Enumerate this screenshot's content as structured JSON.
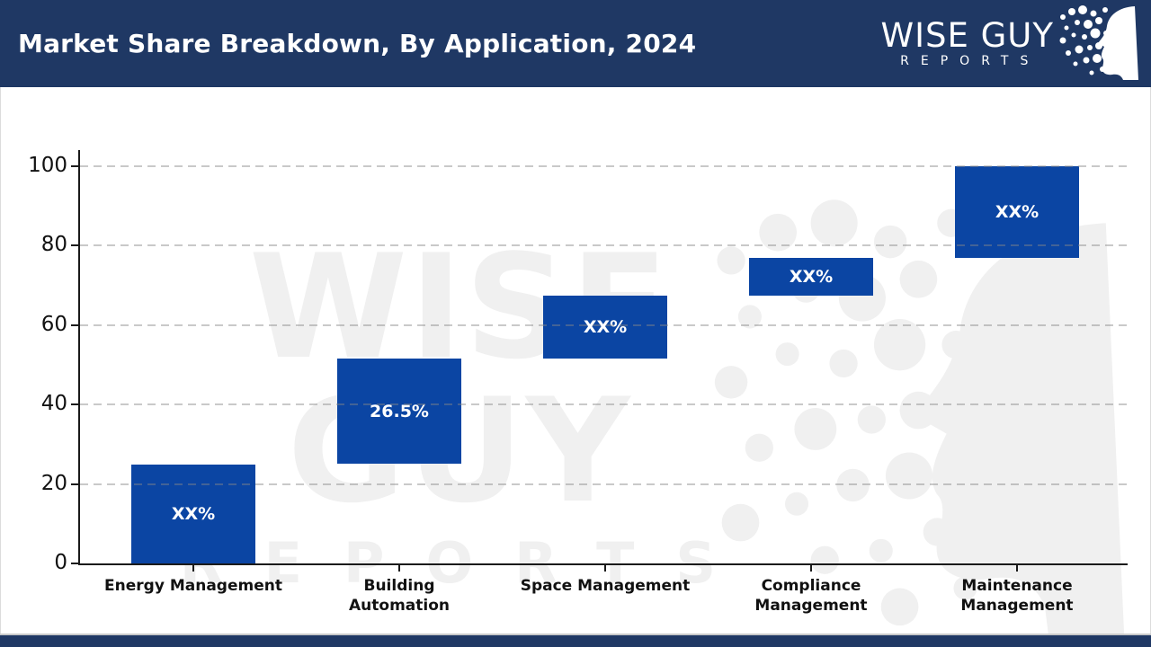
{
  "header": {
    "title": "Market Share Breakdown, By Application, 2024",
    "logo": {
      "line1": "WISE GUY",
      "line2": "REPORTS",
      "icon": "dot-face-icon"
    }
  },
  "watermark": {
    "line1": "WISE GUY",
    "line2": "REPORTS",
    "icon": "dot-face-watermark"
  },
  "colors": {
    "header_bg": "#1f3864",
    "footer_bg": "#1f3864",
    "title_text": "#ffffff",
    "bar": "#0b45a3",
    "bar_label": "#ffffff",
    "axis": "#1a1a1a",
    "gridline": "#c8c8c8",
    "watermark": "#f0f0f0"
  },
  "chart_data": {
    "type": "bar",
    "subtype": "waterfall",
    "title": "Market Share Breakdown, By Application, 2024",
    "xlabel": "",
    "ylabel": "",
    "ylim": [
      0,
      100
    ],
    "yticks": [
      0,
      20,
      40,
      60,
      80,
      100
    ],
    "grid": true,
    "grid_style": "dashed",
    "legend": "none",
    "categories": [
      "Energy Management",
      "Building Automation",
      "Space Management",
      "Compliance Management",
      "Maintenance Management"
    ],
    "categories_display": [
      "Energy Management",
      "Building\nAutomation",
      "Space Management",
      "Compliance\nManagement",
      "Maintenance\nManagement"
    ],
    "segments": [
      {
        "category": "Energy Management",
        "start": 0,
        "end": 25,
        "value": 25,
        "label": "XX%"
      },
      {
        "category": "Building Automation",
        "start": 25,
        "end": 51.5,
        "value": 26.5,
        "label": "26.5%"
      },
      {
        "category": "Space Management",
        "start": 51.5,
        "end": 67.5,
        "value": 16,
        "label": "XX%"
      },
      {
        "category": "Compliance Management",
        "start": 67.5,
        "end": 77,
        "value": 9.5,
        "label": "XX%"
      },
      {
        "category": "Maintenance Management",
        "start": 77,
        "end": 100,
        "value": 23,
        "label": "XX%"
      }
    ]
  }
}
